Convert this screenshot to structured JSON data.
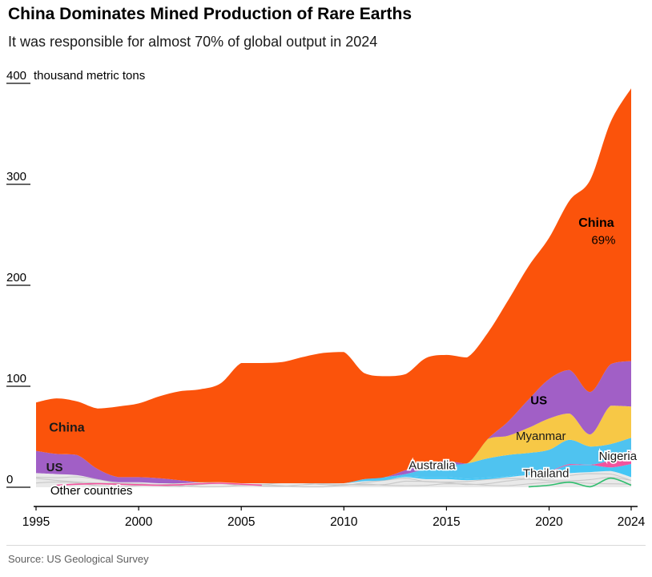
{
  "header": {
    "title": "China Dominates Mined Production of Rare Earths",
    "subtitle": "It was responsible for almost 70% of global output in 2024"
  },
  "footer": {
    "source": "Source: US Geological Survey"
  },
  "chart_data": {
    "type": "area",
    "stacked": true,
    "title": "China Dominates Mined Production of Rare Earths",
    "unit_label": "thousand metric tons",
    "xlim": [
      1995,
      2024
    ],
    "ylim": [
      0,
      400
    ],
    "xticks": [
      1995,
      2000,
      2005,
      2010,
      2015,
      2020,
      2024
    ],
    "yticks": [
      0,
      100,
      200,
      300,
      400
    ],
    "x": [
      1995,
      1996,
      1997,
      1998,
      1999,
      2000,
      2001,
      2002,
      2003,
      2004,
      2005,
      2006,
      2007,
      2008,
      2009,
      2010,
      2011,
      2012,
      2013,
      2014,
      2015,
      2016,
      2017,
      2018,
      2019,
      2020,
      2021,
      2022,
      2023,
      2024
    ],
    "series": [
      {
        "name": "Other countries",
        "color": "#E9E9E9",
        "values": [
          14,
          13,
          12,
          8,
          5,
          5,
          4,
          4,
          5,
          5,
          4,
          4,
          4,
          4,
          4,
          4,
          6,
          7,
          10,
          8,
          8,
          7,
          8,
          10,
          12,
          12,
          14,
          15,
          16,
          10
        ]
      },
      {
        "name": "Thailand",
        "color": "#45C6F5",
        "values": [
          0,
          0,
          0,
          0,
          0,
          0,
          0,
          0,
          0,
          0,
          0,
          0,
          0,
          0,
          0,
          0,
          0,
          0,
          1,
          2,
          2,
          1.6,
          1.6,
          1,
          1.9,
          3.6,
          8,
          7,
          3.6,
          13
        ]
      },
      {
        "name": "Nigeria",
        "color": "#F2549E",
        "values": [
          0,
          0,
          0,
          0,
          0,
          0,
          0,
          0,
          0,
          0,
          0,
          0,
          0,
          0,
          0,
          0,
          0,
          0,
          0,
          0,
          0,
          0,
          0,
          0,
          0,
          0.5,
          1,
          0.3,
          7.2,
          13
        ]
      },
      {
        "name": "Australia",
        "color": "#4FC3F0",
        "values": [
          0,
          0,
          0,
          0,
          0,
          0,
          0,
          0,
          0,
          0,
          0,
          0,
          0,
          0,
          0,
          0,
          2,
          3,
          2,
          8,
          12,
          15,
          19,
          21,
          20,
          21,
          24,
          18,
          16,
          13
        ]
      },
      {
        "name": "Myanmar",
        "color": "#F7C846",
        "values": [
          0,
          0,
          0,
          0,
          0,
          0,
          0,
          0,
          0,
          0,
          0,
          0,
          0,
          0,
          0,
          0,
          0,
          0,
          0,
          0,
          0,
          0,
          19,
          19,
          25,
          31,
          26,
          12,
          38,
          31
        ]
      },
      {
        "name": "US",
        "color": "#A15FC6",
        "values": [
          22,
          20,
          20,
          10,
          5,
          5,
          5,
          3,
          0,
          0,
          0,
          0,
          0,
          0,
          0,
          0,
          0,
          0,
          4,
          5,
          4,
          0,
          0,
          14,
          28,
          39,
          43,
          42,
          41,
          45
        ]
      },
      {
        "name": "China",
        "color": "#FB530B",
        "values": [
          48,
          55,
          53,
          60,
          70,
          73,
          81,
          88,
          92,
          98,
          119,
          119,
          120,
          125,
          129,
          130,
          105,
          100,
          95,
          105,
          105,
          105,
          105,
          120,
          132,
          140,
          168,
          210,
          240,
          270
        ]
      }
    ],
    "strand_color": "#C8C8C8",
    "extra_strands": [
      {
        "name": "pink-strand",
        "color": "#F2549E",
        "years": [
          1996,
          1997,
          1998,
          1999,
          2000,
          2001,
          2002,
          2003,
          2004,
          2005,
          2006
        ],
        "values": [
          2,
          3,
          3.5,
          3,
          2.5,
          2,
          2.5,
          3.5,
          4,
          3,
          2
        ]
      },
      {
        "name": "green-strand",
        "color": "#2FBE6E",
        "years": [
          2019,
          2020,
          2021,
          2022,
          2023,
          2024
        ],
        "values": [
          0.5,
          2,
          5,
          0.5,
          9,
          2
        ]
      }
    ],
    "annotations": [
      {
        "slug": "china-left",
        "text": "China",
        "year": 1996.5,
        "value": 55,
        "bold": true,
        "size": 16,
        "color": "#1a1a1a",
        "halo": false
      },
      {
        "slug": "us-left",
        "text": "US",
        "year": 1995.9,
        "value": 16,
        "bold": true,
        "size": 15,
        "color": "#1a1a1a",
        "halo": false
      },
      {
        "slug": "other-countries",
        "text": "Other countries",
        "year": 1997.7,
        "value": -7,
        "bold": false,
        "size": 15,
        "color": "#000000",
        "halo": true
      },
      {
        "slug": "china-right",
        "text": "China",
        "year": 2022.3,
        "value": 258,
        "bold": true,
        "size": 16,
        "color": "#000000",
        "halo": false
      },
      {
        "slug": "china-share",
        "text": "69%",
        "year": 2022.65,
        "value": 241,
        "bold": false,
        "size": 15,
        "color": "#000000",
        "halo": false
      },
      {
        "slug": "us-right",
        "text": "US",
        "year": 2019.5,
        "value": 82,
        "bold": true,
        "size": 15,
        "color": "#000000",
        "halo": false
      },
      {
        "slug": "myanmar",
        "text": "Myanmar",
        "year": 2019.6,
        "value": 47,
        "bold": false,
        "size": 15,
        "color": "#1a1a1a",
        "halo": false
      },
      {
        "slug": "australia",
        "text": "Australia",
        "year": 2014.3,
        "value": 18,
        "bold": false,
        "size": 15,
        "color": "#1a1a1a",
        "halo": true
      },
      {
        "slug": "thailand",
        "text": "Thailand",
        "year": 2019.85,
        "value": 10,
        "bold": false,
        "size": 15,
        "color": "#1a1a1a",
        "halo": true
      },
      {
        "slug": "nigeria",
        "text": "Nigeria",
        "year": 2023.35,
        "value": 27,
        "bold": false,
        "size": 15,
        "color": "#1a1a1a",
        "halo": true
      }
    ]
  }
}
